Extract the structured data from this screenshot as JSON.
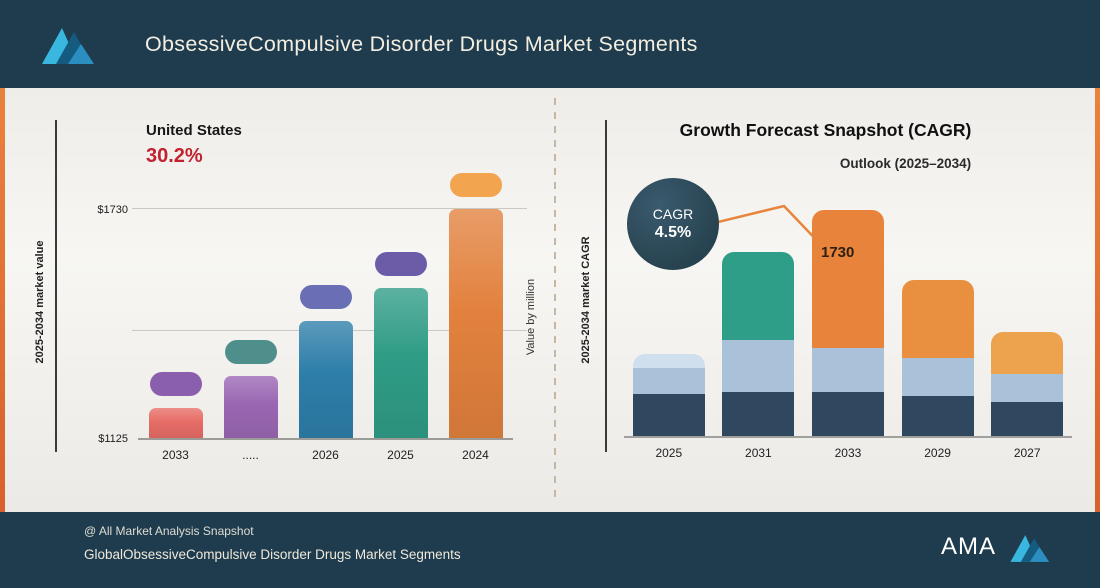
{
  "colors": {
    "header-bg": "#1e3c4e",
    "accent": "#e8853d",
    "red": "#c1222e"
  },
  "header": {
    "title": "ObsessiveCompulsive Disorder Drugs Market Segments",
    "brand": "AMA"
  },
  "footer": {
    "line1": "@ All Market Analysis Snapshot",
    "line2": "GlobalObsessiveCompulsive Disorder Drugs Market Segments",
    "brand": "AMA"
  },
  "chart_data": [
    {
      "type": "bar",
      "title": "United States",
      "highlight": "30.2%",
      "ylabel_left": "2025-2034 market value",
      "ylabel_right": "Value by million",
      "categories": [
        "2033",
        ".....",
        "2026",
        "2025",
        "2024"
      ],
      "values": [
        1205,
        1290,
        1435,
        1520,
        1730
      ],
      "bar_colors": [
        "#e76d67",
        "#9a67b3",
        "#2d7ea9",
        "#2f9c86",
        "#e2813d"
      ],
      "cap_colors": [
        "#8a5fae",
        "#4f8f8b",
        "#6a6fb5",
        "#6c5ca8",
        "#f2a44f"
      ],
      "y_ticks": [
        {
          "label": "$1730",
          "value": 1730
        },
        {
          "label": "$1125",
          "value": 1125
        }
      ],
      "gridlines": [
        1730,
        1408
      ],
      "ylim": [
        1125,
        1790
      ],
      "legend": "none",
      "grid": "horizontal"
    },
    {
      "type": "stacked-bar",
      "title": "Growth Forecast Snapshot (CAGR)",
      "subtitle": "Outlook (2025–2034)",
      "ylabel": "2025-2034 market CAGR",
      "badge": {
        "line1": "CAGR",
        "line2": "4.5%"
      },
      "annotation": "1730",
      "categories": [
        "2025",
        "2031",
        "2033",
        "2029",
        "2027"
      ],
      "units": "relative height (no numeric axis shown)",
      "series": [
        {
          "name": "base",
          "color": "#30485f",
          "values": [
            42,
            44,
            44,
            40,
            34
          ]
        },
        {
          "name": "mid",
          "color": "#a9c2da",
          "values": [
            26,
            52,
            44,
            38,
            28
          ]
        },
        {
          "name": "top",
          "colors": [
            "#cfdfee",
            "#2f9e88",
            "#e8833b",
            "#e8903f",
            "#eda24d"
          ],
          "values": [
            14,
            88,
            138,
            78,
            42
          ]
        }
      ],
      "legend": "none",
      "grid": "off"
    }
  ]
}
